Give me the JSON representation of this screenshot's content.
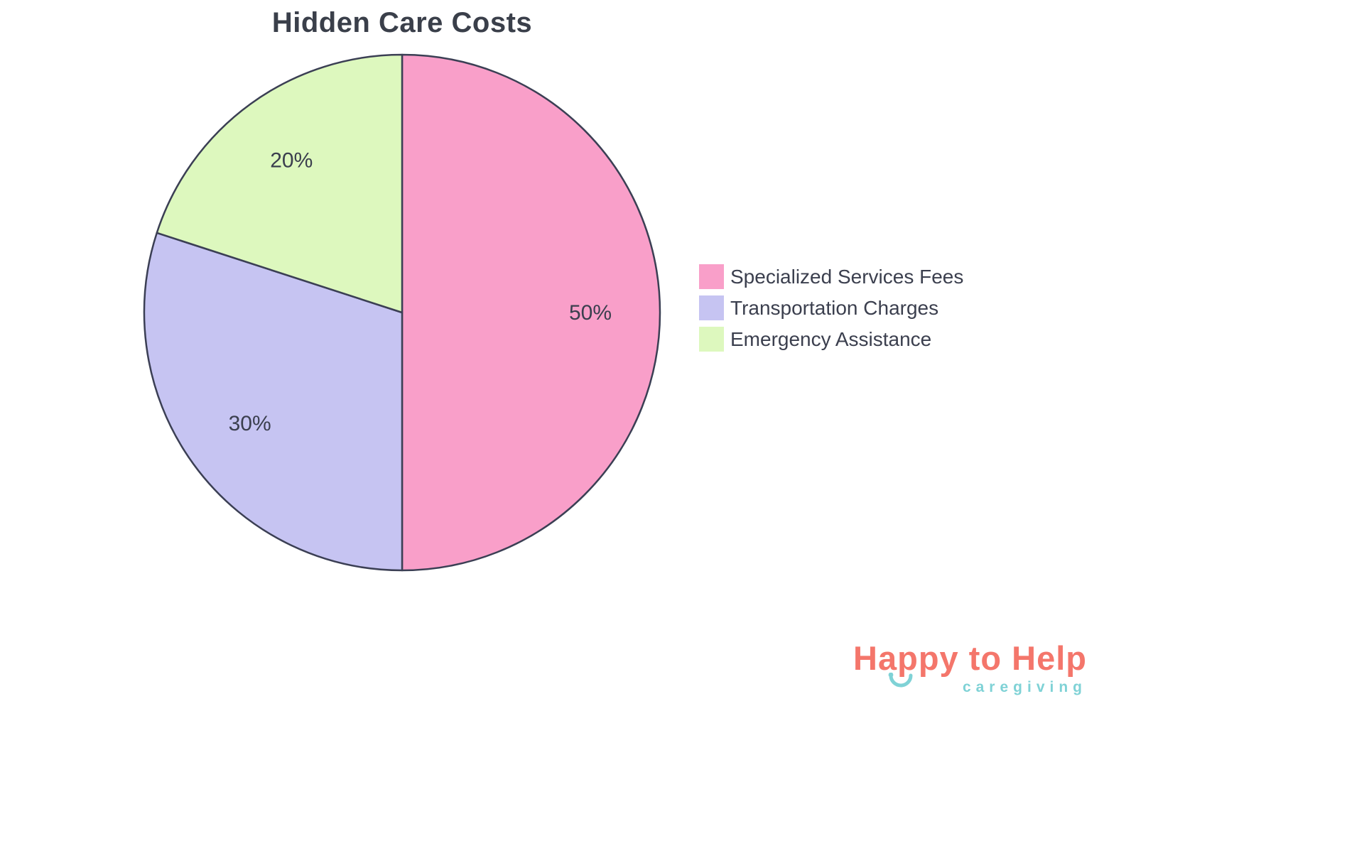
{
  "chart_data": {
    "type": "pie",
    "title": "Hidden Care Costs",
    "labels": [
      "Specialized Services Fees",
      "Transportation Charges",
      "Emergency Assistance"
    ],
    "values": [
      50,
      30,
      20
    ],
    "slice_labels": [
      "50%",
      "30%",
      "20%"
    ],
    "colors": [
      "#F99FC9",
      "#C6C4F2",
      "#DDF8BE"
    ],
    "stroke_color": "#3B3F54",
    "label_color": "#3B3F4E",
    "legend_position": "right",
    "start_angle": "top",
    "direction": "clockwise"
  },
  "branding": {
    "name": "Happy to Help",
    "tagline": "caregiving",
    "name_color": "#F4766B",
    "tagline_color": "#7FD2D6"
  }
}
